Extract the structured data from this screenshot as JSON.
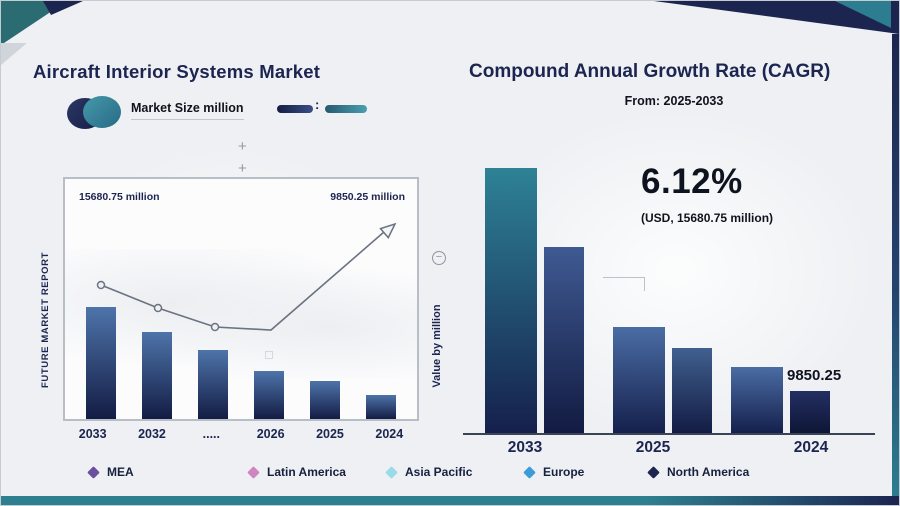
{
  "page": {
    "background": "#eef0f3",
    "accent_teal": "#2c7d8f",
    "accent_navy": "#1c2550"
  },
  "decor": {
    "plus": "+",
    "minus": "−",
    "colon": ":"
  },
  "chart_data": [
    {
      "type": "bar",
      "title": "Aircraft Interior Systems Market",
      "legend": "Market Size million",
      "side_label": "FUTURE MARKET REPORT",
      "categories": [
        "2033",
        "2032",
        ".....",
        "2026",
        "2025",
        "2024"
      ],
      "values_relative_pct": [
        100,
        78,
        62,
        43,
        34,
        21
      ],
      "annotations": [
        {
          "text": "15680.75 million",
          "position": "top-left",
          "refers_to": "2033"
        },
        {
          "text": "9850.25 million",
          "position": "top-right",
          "refers_to": "2024"
        }
      ],
      "overlay_line": {
        "description": "trend line with circular markers declining over first three bars, then rising arrow toward top-right annotation",
        "marker_count": 3
      },
      "grid": false,
      "legend_position": "top-left"
    },
    {
      "type": "bar",
      "title": "Compound Annual Growth Rate (CAGR)",
      "subtitle": "From: 2025-2033",
      "cagr": "6.12%",
      "cagr_note": "(USD, 15680.75 million)",
      "ylabel": "Value by million",
      "categories": [
        "2033",
        "2025",
        "2024"
      ],
      "series": [
        {
          "name": "primary",
          "values_relative_pct": [
            100,
            40,
            25
          ]
        },
        {
          "name": "secondary",
          "values_relative_pct": [
            70,
            32,
            16
          ]
        }
      ],
      "annotations": [
        {
          "text": "9850.25",
          "category": "2024"
        }
      ],
      "grid": false
    }
  ],
  "footer_legend": [
    {
      "label": "MEA",
      "color": "#6a4fa0"
    },
    {
      "label": "Latin America",
      "color": "#cf86c0"
    },
    {
      "label": "Asia Pacific",
      "color": "#9adbe8"
    },
    {
      "label": "Europe",
      "color": "#3d9bd9"
    },
    {
      "label": "North America",
      "color": "#1c2550"
    }
  ]
}
